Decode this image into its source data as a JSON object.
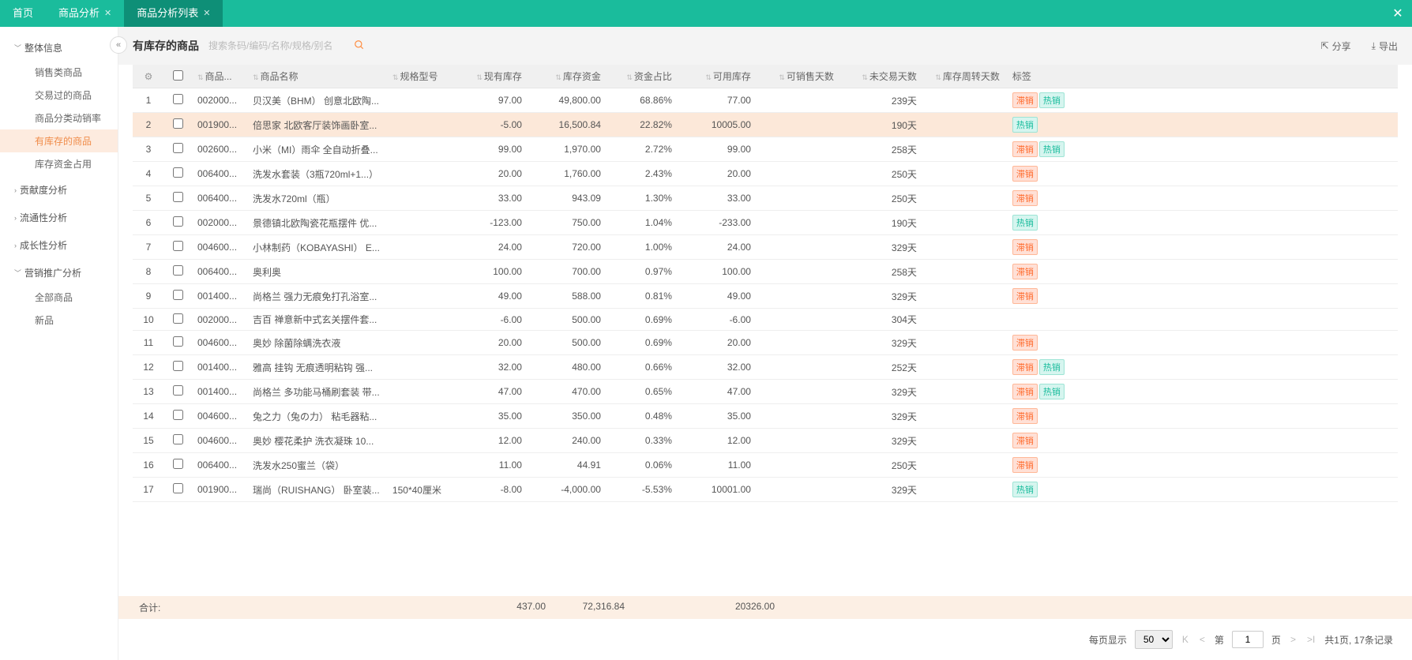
{
  "colors": {
    "primary": "#1abc9c",
    "primary_dark": "#0e8f77",
    "highlight_row": "#fce8d9",
    "sidebar_selected_bg": "#fdebdf",
    "sidebar_selected_text": "#f08c4a",
    "header_bg": "#f4f4f4",
    "table_header_bg": "#f0f0f0"
  },
  "tabs": [
    {
      "label": "首页",
      "closable": false,
      "active": false
    },
    {
      "label": "商品分析",
      "closable": true,
      "active": false
    },
    {
      "label": "商品分析列表",
      "closable": true,
      "active": true
    }
  ],
  "sidebar": {
    "groups": [
      {
        "label": "整体信息",
        "expanded": true,
        "items": [
          {
            "label": "销售类商品"
          },
          {
            "label": "交易过的商品"
          },
          {
            "label": "商品分类动销率"
          },
          {
            "label": "有库存的商品",
            "selected": true
          },
          {
            "label": "库存资金占用"
          }
        ]
      },
      {
        "label": "贡献度分析",
        "expanded": false,
        "items": []
      },
      {
        "label": "流通性分析",
        "expanded": false,
        "items": []
      },
      {
        "label": "成长性分析",
        "expanded": false,
        "items": []
      },
      {
        "label": "营销推广分析",
        "expanded": true,
        "items": [
          {
            "label": "全部商品"
          },
          {
            "label": "新品"
          }
        ]
      }
    ]
  },
  "header": {
    "title": "有库存的商品",
    "search_placeholder": "搜索条码/编码/名称/规格/别名",
    "share_label": "分享",
    "export_label": "导出"
  },
  "table": {
    "columns": [
      {
        "key": "gear",
        "label": "",
        "icon": "gear"
      },
      {
        "key": "chk",
        "label": ""
      },
      {
        "key": "code",
        "label": "商品...",
        "sortable": true
      },
      {
        "key": "name",
        "label": "商品名称",
        "sortable": true
      },
      {
        "key": "spec",
        "label": "规格型号",
        "sortable": true
      },
      {
        "key": "stock",
        "label": "现有库存",
        "sortable": true,
        "align": "right"
      },
      {
        "key": "fund",
        "label": "库存资金",
        "sortable": true,
        "align": "right"
      },
      {
        "key": "pct",
        "label": "资金占比",
        "sortable": true,
        "align": "right"
      },
      {
        "key": "avail",
        "label": "可用库存",
        "sortable": true,
        "align": "right"
      },
      {
        "key": "saleDays",
        "label": "可销售天数",
        "sortable": true,
        "align": "right"
      },
      {
        "key": "noTrade",
        "label": "未交易天数",
        "sortable": true,
        "align": "right"
      },
      {
        "key": "turn",
        "label": "库存周转天数",
        "sortable": true,
        "align": "right"
      },
      {
        "key": "tags",
        "label": "标签"
      }
    ],
    "rows": [
      {
        "idx": 1,
        "code": "002000...",
        "name": "贝汉美（BHM） 创意北欧陶...",
        "spec": "",
        "stock": "97.00",
        "fund": "49,800.00",
        "pct": "68.86%",
        "avail": "77.00",
        "saleDays": "",
        "noTrade": "239天",
        "turn": "",
        "tags": [
          "滞销",
          "热销"
        ]
      },
      {
        "idx": 2,
        "code": "001900...",
        "name": "倍思家 北欧客厅装饰画卧室...",
        "spec": "",
        "stock": "-5.00",
        "fund": "16,500.84",
        "pct": "22.82%",
        "avail": "10005.00",
        "saleDays": "",
        "noTrade": "190天",
        "turn": "",
        "tags": [
          "热销"
        ],
        "highlight": true
      },
      {
        "idx": 3,
        "code": "002600...",
        "name": "小米（MI）雨伞 全自动折叠...",
        "spec": "",
        "stock": "99.00",
        "fund": "1,970.00",
        "pct": "2.72%",
        "avail": "99.00",
        "saleDays": "",
        "noTrade": "258天",
        "turn": "",
        "tags": [
          "滞销",
          "热销"
        ]
      },
      {
        "idx": 4,
        "code": "006400...",
        "name": "洗发水套装（3瓶720ml+1...）",
        "spec": "",
        "stock": "20.00",
        "fund": "1,760.00",
        "pct": "2.43%",
        "avail": "20.00",
        "saleDays": "",
        "noTrade": "250天",
        "turn": "",
        "tags": [
          "滞销"
        ]
      },
      {
        "idx": 5,
        "code": "006400...",
        "name": "洗发水720ml（瓶）",
        "spec": "",
        "stock": "33.00",
        "fund": "943.09",
        "pct": "1.30%",
        "avail": "33.00",
        "saleDays": "",
        "noTrade": "250天",
        "turn": "",
        "tags": [
          "滞销"
        ]
      },
      {
        "idx": 6,
        "code": "002000...",
        "name": "景德镇北欧陶瓷花瓶摆件 优...",
        "spec": "",
        "stock": "-123.00",
        "fund": "750.00",
        "pct": "1.04%",
        "avail": "-233.00",
        "saleDays": "",
        "noTrade": "190天",
        "turn": "",
        "tags": [
          "热销"
        ]
      },
      {
        "idx": 7,
        "code": "004600...",
        "name": "小林制药（KOBAYASHI） E...",
        "spec": "",
        "stock": "24.00",
        "fund": "720.00",
        "pct": "1.00%",
        "avail": "24.00",
        "saleDays": "",
        "noTrade": "329天",
        "turn": "",
        "tags": [
          "滞销"
        ]
      },
      {
        "idx": 8,
        "code": "006400...",
        "name": "奥利奥",
        "spec": "",
        "stock": "100.00",
        "fund": "700.00",
        "pct": "0.97%",
        "avail": "100.00",
        "saleDays": "",
        "noTrade": "258天",
        "turn": "",
        "tags": [
          "滞销"
        ]
      },
      {
        "idx": 9,
        "code": "001400...",
        "name": "尚格兰 强力无痕免打孔浴室...",
        "spec": "",
        "stock": "49.00",
        "fund": "588.00",
        "pct": "0.81%",
        "avail": "49.00",
        "saleDays": "",
        "noTrade": "329天",
        "turn": "",
        "tags": [
          "滞销"
        ]
      },
      {
        "idx": 10,
        "code": "002000...",
        "name": "吉百 禅意新中式玄关摆件套...",
        "spec": "",
        "stock": "-6.00",
        "fund": "500.00",
        "pct": "0.69%",
        "avail": "-6.00",
        "saleDays": "",
        "noTrade": "304天",
        "turn": "",
        "tags": []
      },
      {
        "idx": 11,
        "code": "004600...",
        "name": "奥妙 除菌除螨洗衣液",
        "spec": "",
        "stock": "20.00",
        "fund": "500.00",
        "pct": "0.69%",
        "avail": "20.00",
        "saleDays": "",
        "noTrade": "329天",
        "turn": "",
        "tags": [
          "滞销"
        ]
      },
      {
        "idx": 12,
        "code": "001400...",
        "name": "雅高 挂钩 无痕透明粘钩 强...",
        "spec": "",
        "stock": "32.00",
        "fund": "480.00",
        "pct": "0.66%",
        "avail": "32.00",
        "saleDays": "",
        "noTrade": "252天",
        "turn": "",
        "tags": [
          "滞销",
          "热销"
        ]
      },
      {
        "idx": 13,
        "code": "001400...",
        "name": "尚格兰 多功能马桶刷套装 带...",
        "spec": "",
        "stock": "47.00",
        "fund": "470.00",
        "pct": "0.65%",
        "avail": "47.00",
        "saleDays": "",
        "noTrade": "329天",
        "turn": "",
        "tags": [
          "滞销",
          "热销"
        ]
      },
      {
        "idx": 14,
        "code": "004600...",
        "name": "兔之力（兔の力） 粘毛器粘...",
        "spec": "",
        "stock": "35.00",
        "fund": "350.00",
        "pct": "0.48%",
        "avail": "35.00",
        "saleDays": "",
        "noTrade": "329天",
        "turn": "",
        "tags": [
          "滞销"
        ]
      },
      {
        "idx": 15,
        "code": "004600...",
        "name": "奥妙 樱花柔护 洗衣凝珠 10...",
        "spec": "",
        "stock": "12.00",
        "fund": "240.00",
        "pct": "0.33%",
        "avail": "12.00",
        "saleDays": "",
        "noTrade": "329天",
        "turn": "",
        "tags": [
          "滞销"
        ]
      },
      {
        "idx": 16,
        "code": "006400...",
        "name": "洗发水250蜜兰（袋）",
        "spec": "",
        "stock": "11.00",
        "fund": "44.91",
        "pct": "0.06%",
        "avail": "11.00",
        "saleDays": "",
        "noTrade": "250天",
        "turn": "",
        "tags": [
          "滞销"
        ]
      },
      {
        "idx": 17,
        "code": "001900...",
        "name": "瑞尚（RUISHANG） 卧室装...",
        "spec": "150*40厘米",
        "stock": "-8.00",
        "fund": "-4,000.00",
        "pct": "-5.53%",
        "avail": "10001.00",
        "saleDays": "",
        "noTrade": "329天",
        "turn": "",
        "tags": [
          "热销"
        ]
      }
    ],
    "totals": {
      "label": "合计:",
      "stock": "437.00",
      "fund": "72,316.84",
      "avail": "20326.00"
    }
  },
  "pagination": {
    "per_page_label": "每页显示",
    "per_page_value": "50",
    "page_prefix": "第",
    "page_value": "1",
    "page_suffix": "页",
    "summary": "共1页, 17条记录"
  }
}
